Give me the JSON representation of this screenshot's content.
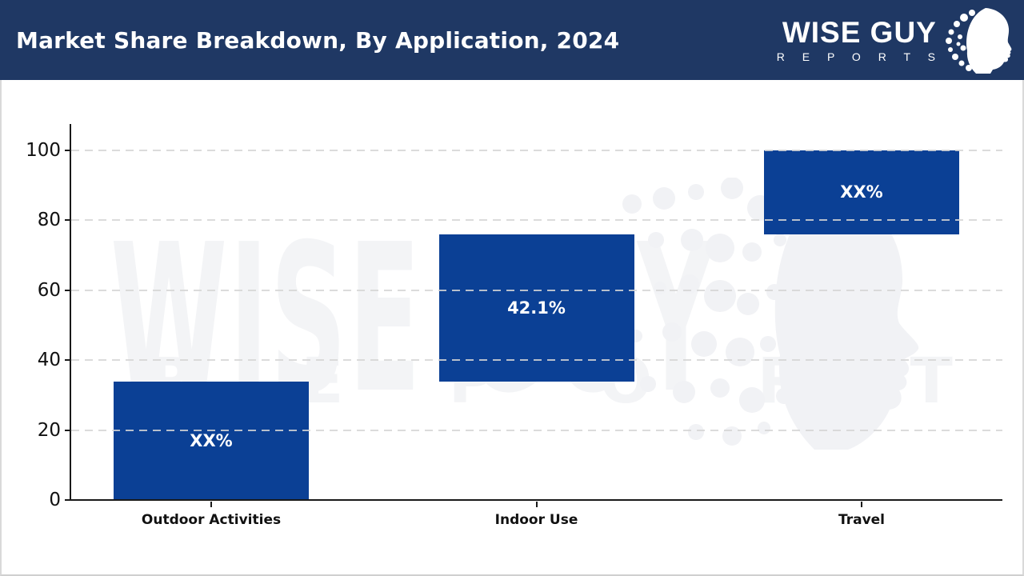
{
  "header": {
    "title": "Market Share Breakdown, By Application, 2024",
    "bg_color": "#1F3864",
    "logo": {
      "primary": "WISE GUY",
      "secondary": "R E P O R T S"
    }
  },
  "watermark": {
    "primary": "WISE GUY",
    "secondary": "R E P O R T S"
  },
  "chart_data": {
    "type": "bar",
    "subtype": "waterfall",
    "title": "Market Share Breakdown, By Application, 2024",
    "categories": [
      "Outdoor Activities",
      "Indoor Use",
      "Travel"
    ],
    "segments": [
      {
        "category": "Outdoor Activities",
        "start": 0,
        "end": 33.9,
        "value_label": "XX%"
      },
      {
        "category": "Indoor Use",
        "start": 33.9,
        "end": 76.0,
        "value_label": "42.1%"
      },
      {
        "category": "Travel",
        "start": 76.0,
        "end": 100,
        "value_label": "XX%"
      }
    ],
    "xlabel": "",
    "ylabel": "",
    "yticks": [
      0,
      20,
      40,
      60,
      80,
      100
    ],
    "ylim": [
      0,
      107.5
    ],
    "grid": "horizontal dashed",
    "legend": "none",
    "bar_color": "#0B4095",
    "bar_label_color": "#FFFFFF",
    "axis_color": "#1a1a1a"
  }
}
